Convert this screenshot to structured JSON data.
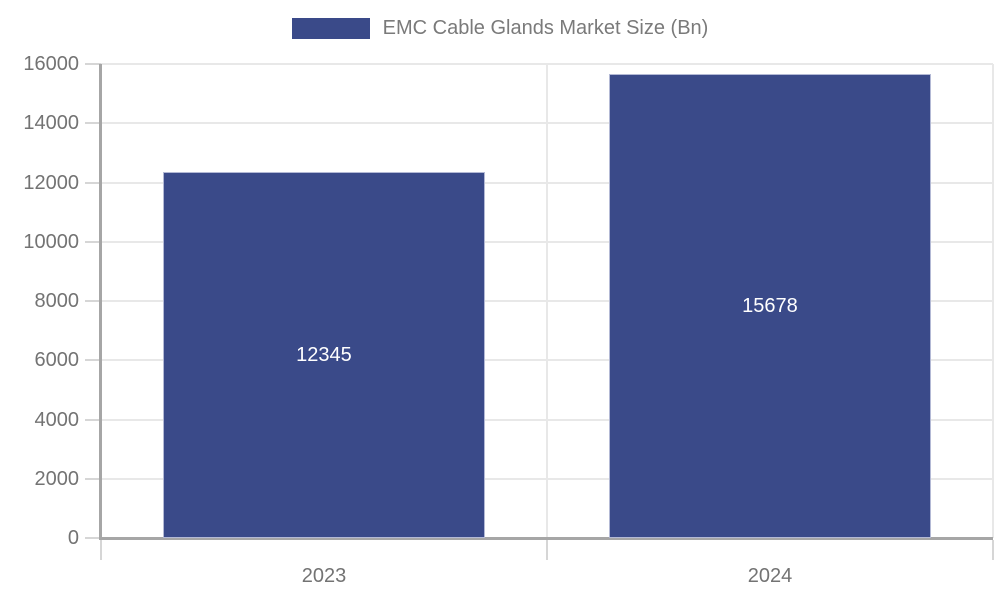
{
  "legend": {
    "label": "EMC Cable Glands Market Size (Bn)"
  },
  "chart_data": {
    "type": "bar",
    "title": "EMC Cable Glands Market Size (Bn)",
    "categories": [
      "2023",
      "2024"
    ],
    "values": [
      12345,
      15678
    ],
    "bar_value_labels": [
      "12345",
      "15678"
    ],
    "xlabel": "",
    "ylabel": "",
    "ylim": [
      0,
      16000
    ],
    "ytick_step": 2000,
    "ytick_labels": [
      "0",
      "2000",
      "4000",
      "6000",
      "8000",
      "10000",
      "12000",
      "14000",
      "16000"
    ],
    "grid": true,
    "legend_position": "top-center"
  },
  "colors": {
    "bar": "#3a4a89",
    "bar_border": "#b3b9d5",
    "grid": "#e8e8e8",
    "axis": "#a6a6a6",
    "tick": "#d6d6d6",
    "tick_label": "#737373",
    "legend_text": "#7a7a7a",
    "value_label": "#ffffff",
    "background": "#ffffff"
  }
}
